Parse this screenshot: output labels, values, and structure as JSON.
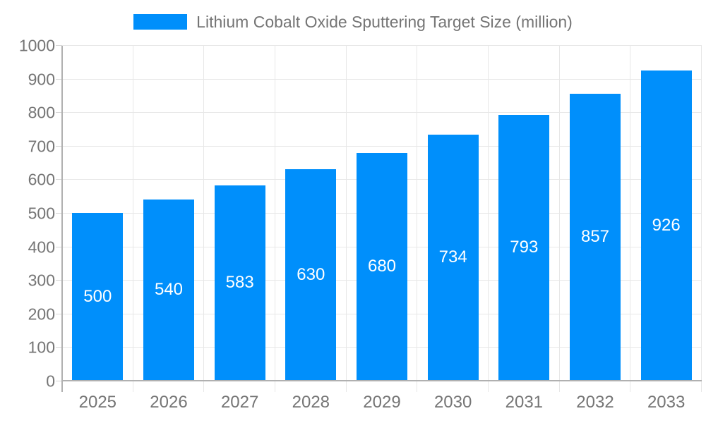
{
  "legend": {
    "label": "Lithium Cobalt Oxide Sputtering Target Size (million)"
  },
  "chart_data": {
    "type": "bar",
    "title": "Lithium Cobalt Oxide Sputtering Target Size (million)",
    "categories": [
      "2025",
      "2026",
      "2027",
      "2028",
      "2029",
      "2030",
      "2031",
      "2032",
      "2033"
    ],
    "values": [
      500,
      540,
      583,
      630,
      680,
      734,
      793,
      857,
      926
    ],
    "xlabel": "",
    "ylabel": "",
    "ylim": [
      0,
      1000
    ],
    "ytick_step": 100,
    "grid": true,
    "legend_position": "top-center",
    "bar_label_position": "inside-center",
    "colors": {
      "bar": "#008ffb",
      "bar_label": "#ffffff",
      "axis_text": "#757575",
      "legend_text": "#757575",
      "gridline": "#e7e7e7",
      "tick": "#d6d6d6",
      "axis_line": "#b0b0b0",
      "background": "#ffffff"
    }
  }
}
